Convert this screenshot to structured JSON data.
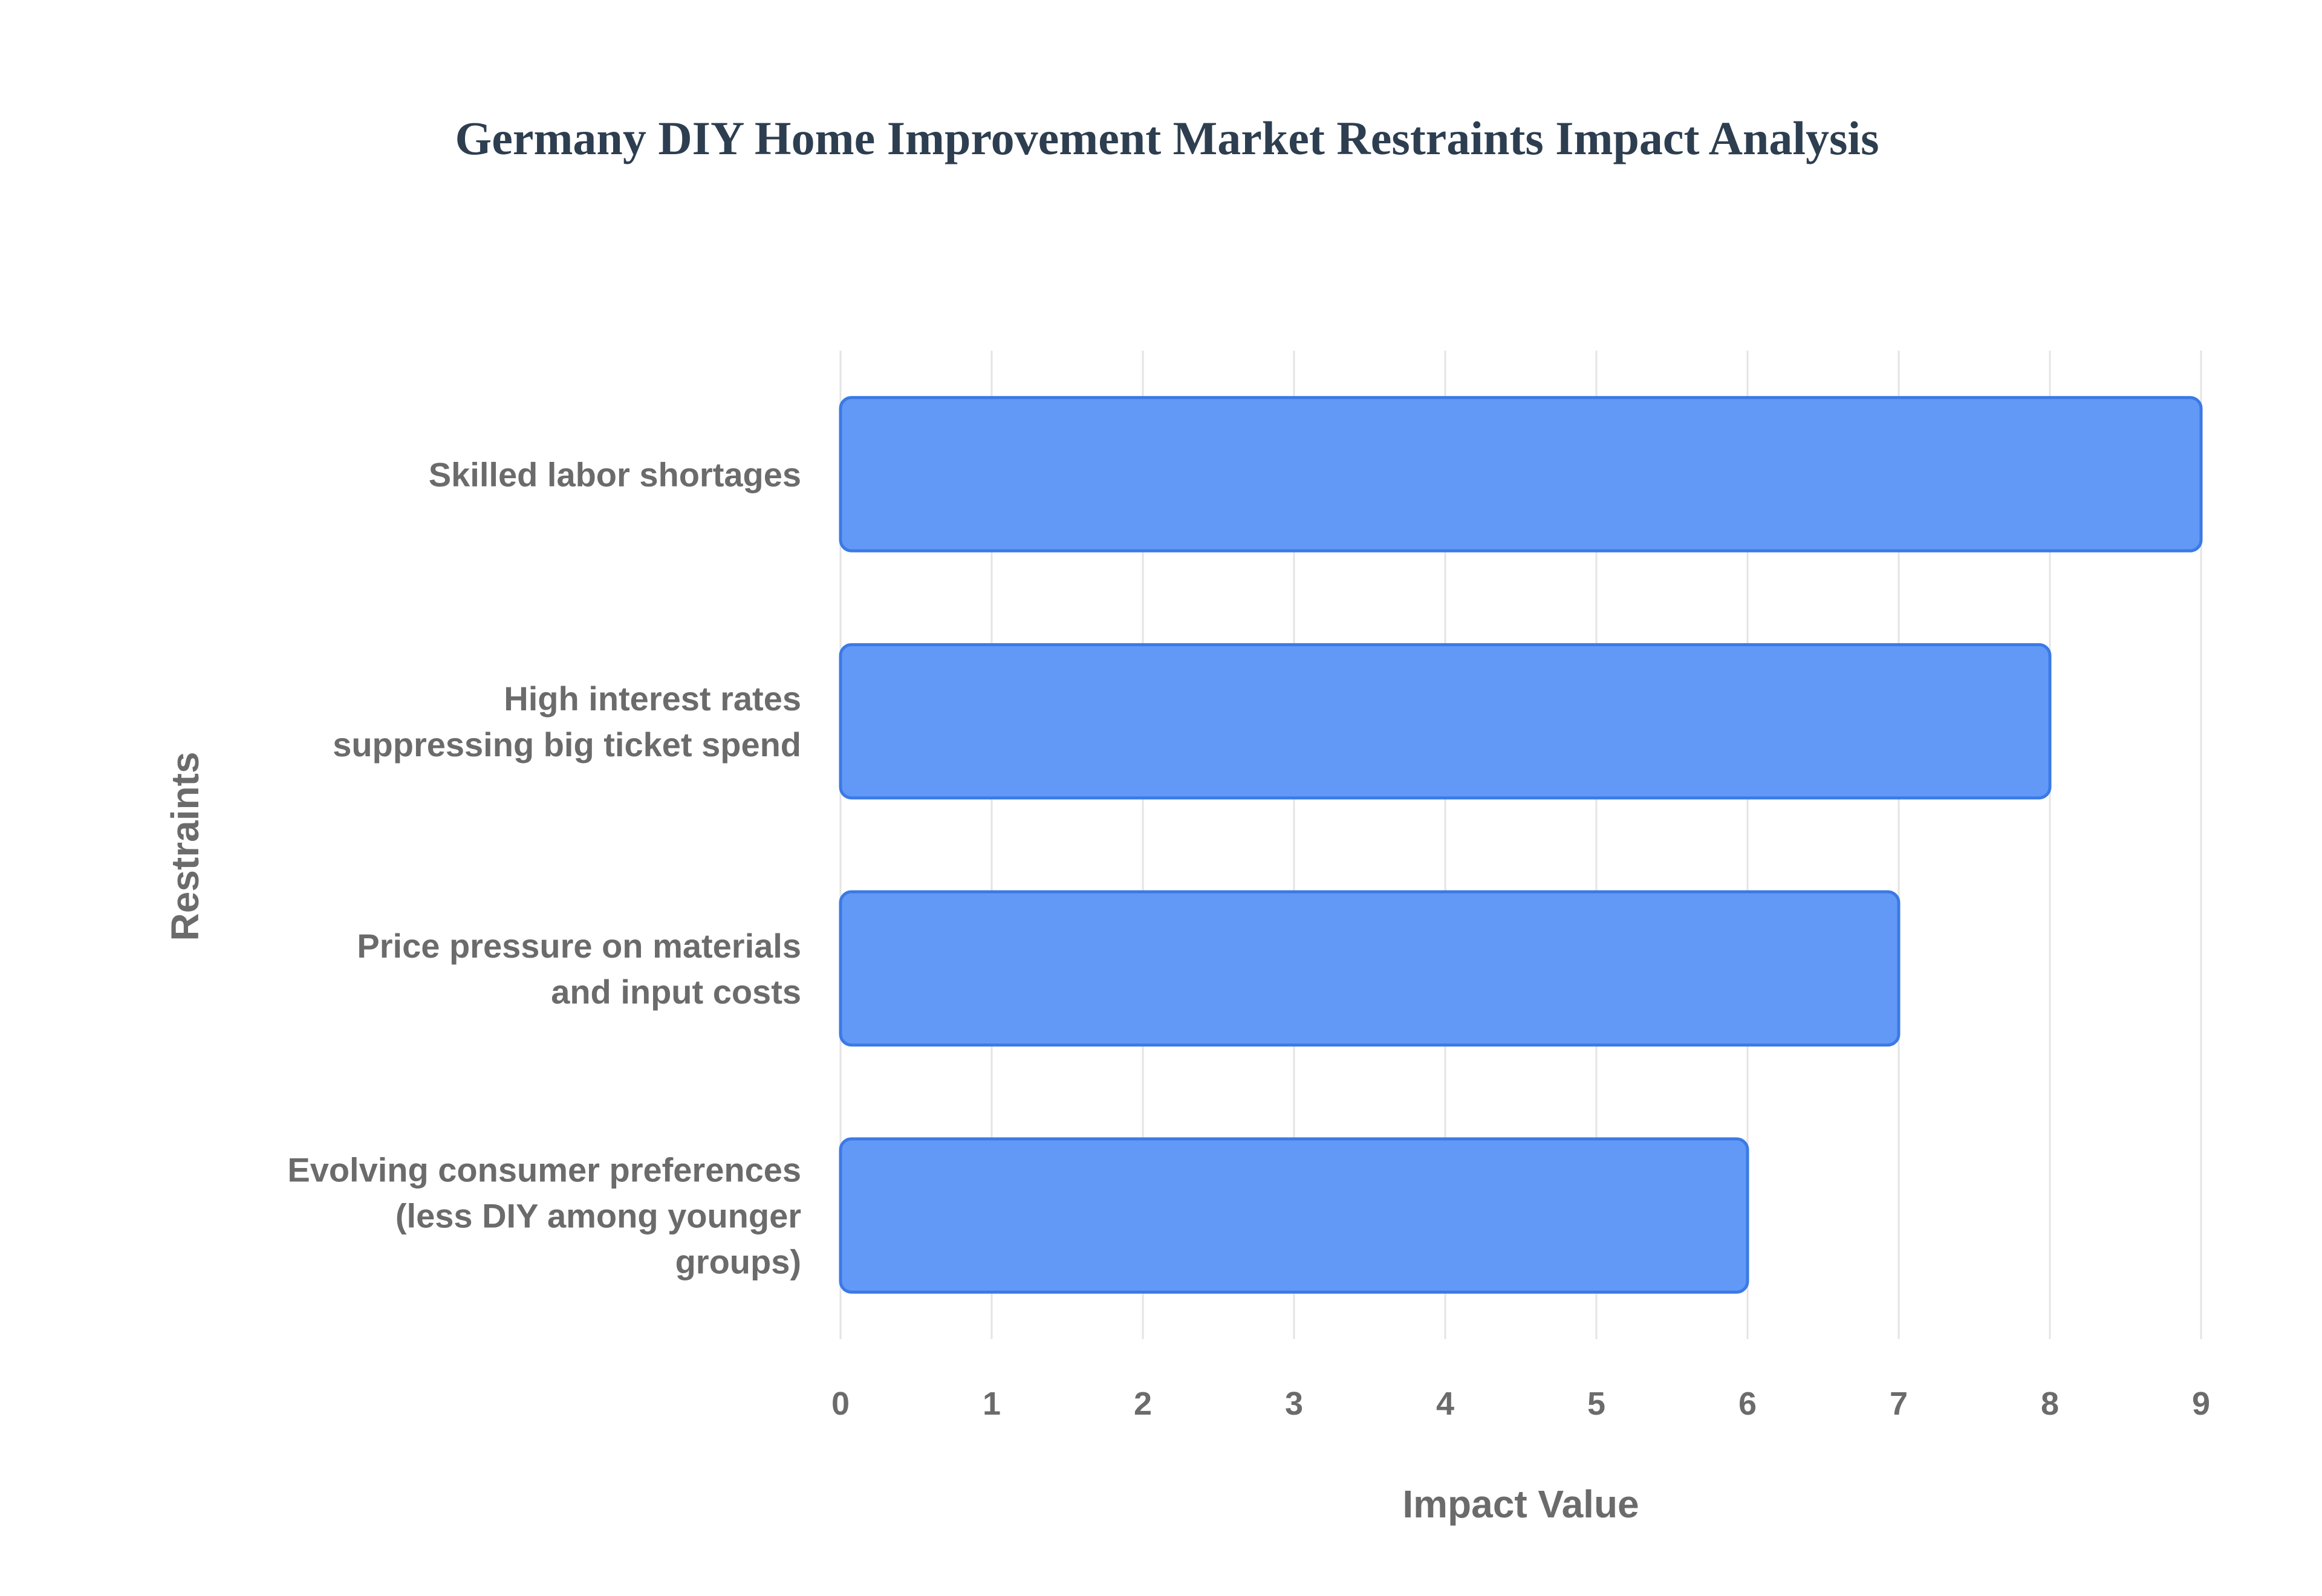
{
  "chart_data": {
    "type": "bar",
    "orientation": "horizontal",
    "title": "Germany DIY Home Improvement Market Restraints Impact Analysis",
    "xlabel": "Impact Value",
    "ylabel": "Restraints",
    "xlim": [
      0,
      9
    ],
    "x_ticks": [
      "0",
      "1",
      "2",
      "3",
      "4",
      "5",
      "6",
      "7",
      "8",
      "9"
    ],
    "grid": true,
    "bar_color": "#6399f6",
    "bar_border_color": "#3b7ae6",
    "categories": [
      [
        "Skilled labor shortages"
      ],
      [
        "High interest rates",
        "suppressing big ticket spend"
      ],
      [
        "Price pressure on materials",
        "and input costs"
      ],
      [
        "Evolving consumer preferences",
        "(less DIY among younger",
        "groups)"
      ]
    ],
    "values": [
      9,
      8,
      7,
      6
    ]
  }
}
